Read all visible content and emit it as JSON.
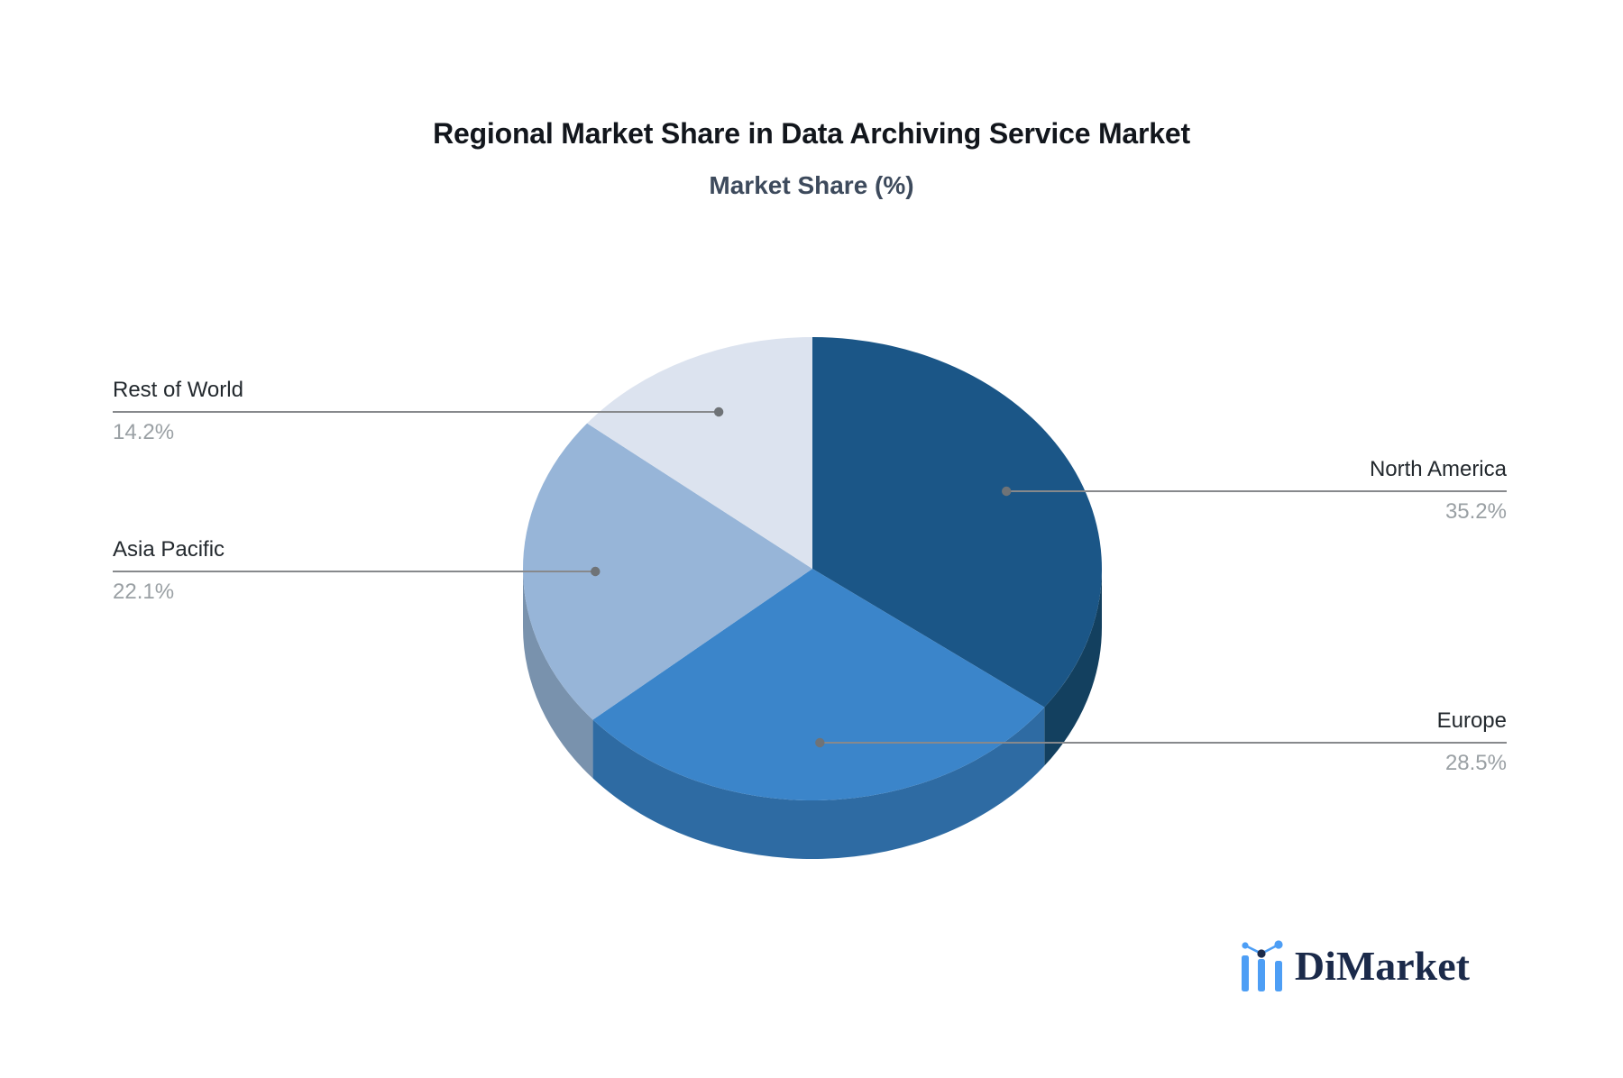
{
  "header": {
    "title": "Regional Market Share in Data Archiving Service Market",
    "subtitle": "Market Share (%)"
  },
  "brand": {
    "name": "DiMarket",
    "icon": "bar-line-chart-logo-icon",
    "icon_bar_color": "#4d9ef5",
    "icon_dot_color": "#1b2a4a",
    "text_color": "#1b2a4a"
  },
  "chart_data": {
    "type": "pie",
    "style": "3d-extruded",
    "title": "Regional Market Share in Data Archiving Service Market",
    "subtitle": "Market Share (%)",
    "unit": "%",
    "direction": "clockwise",
    "start_angle_deg": 0,
    "legend": "none",
    "leader_line_color": "#87898c",
    "leader_dot_color": "#6f7377",
    "label_color": "#23292e",
    "value_color": "#9aa0a4",
    "slices": [
      {
        "label": "North America",
        "value": 35.2,
        "display": "35.2%",
        "color": "#1b5687",
        "side_color": "#13405f",
        "label_side": "right"
      },
      {
        "label": "Europe",
        "value": 28.5,
        "display": "28.5%",
        "color": "#3b85ca",
        "side_color": "#2e6ba3",
        "label_side": "right"
      },
      {
        "label": "Asia Pacific",
        "value": 22.1,
        "display": "22.1%",
        "color": "#97b5d8",
        "side_color": "#7992ad",
        "label_side": "left"
      },
      {
        "label": "Rest of World",
        "value": 14.2,
        "display": "14.2%",
        "color": "#dce3ef",
        "side_color": "#c3ccdd",
        "label_side": "left"
      }
    ]
  }
}
